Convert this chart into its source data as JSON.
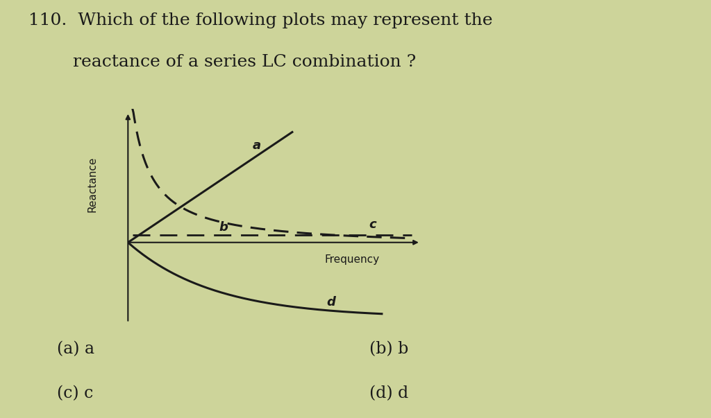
{
  "background_color": "#cdd49a",
  "title_line1": "110.  Which of the following plots may represent the",
  "title_line2": "        reactance of a series LC combination ?",
  "title_fontsize": 18,
  "title_color": "#1a1a1a",
  "ylabel": "Reactance",
  "xlabel": "Frequency",
  "axis_color": "#1a1a1a",
  "curve_color": "#1a1a1a",
  "label_a": "a",
  "label_b": "b",
  "label_c": "c",
  "label_d": "d",
  "options": [
    "(a) a",
    "(b) b",
    "(c) c",
    "(d) d"
  ],
  "options_fontsize": 17,
  "options_color": "#1a1a1a"
}
